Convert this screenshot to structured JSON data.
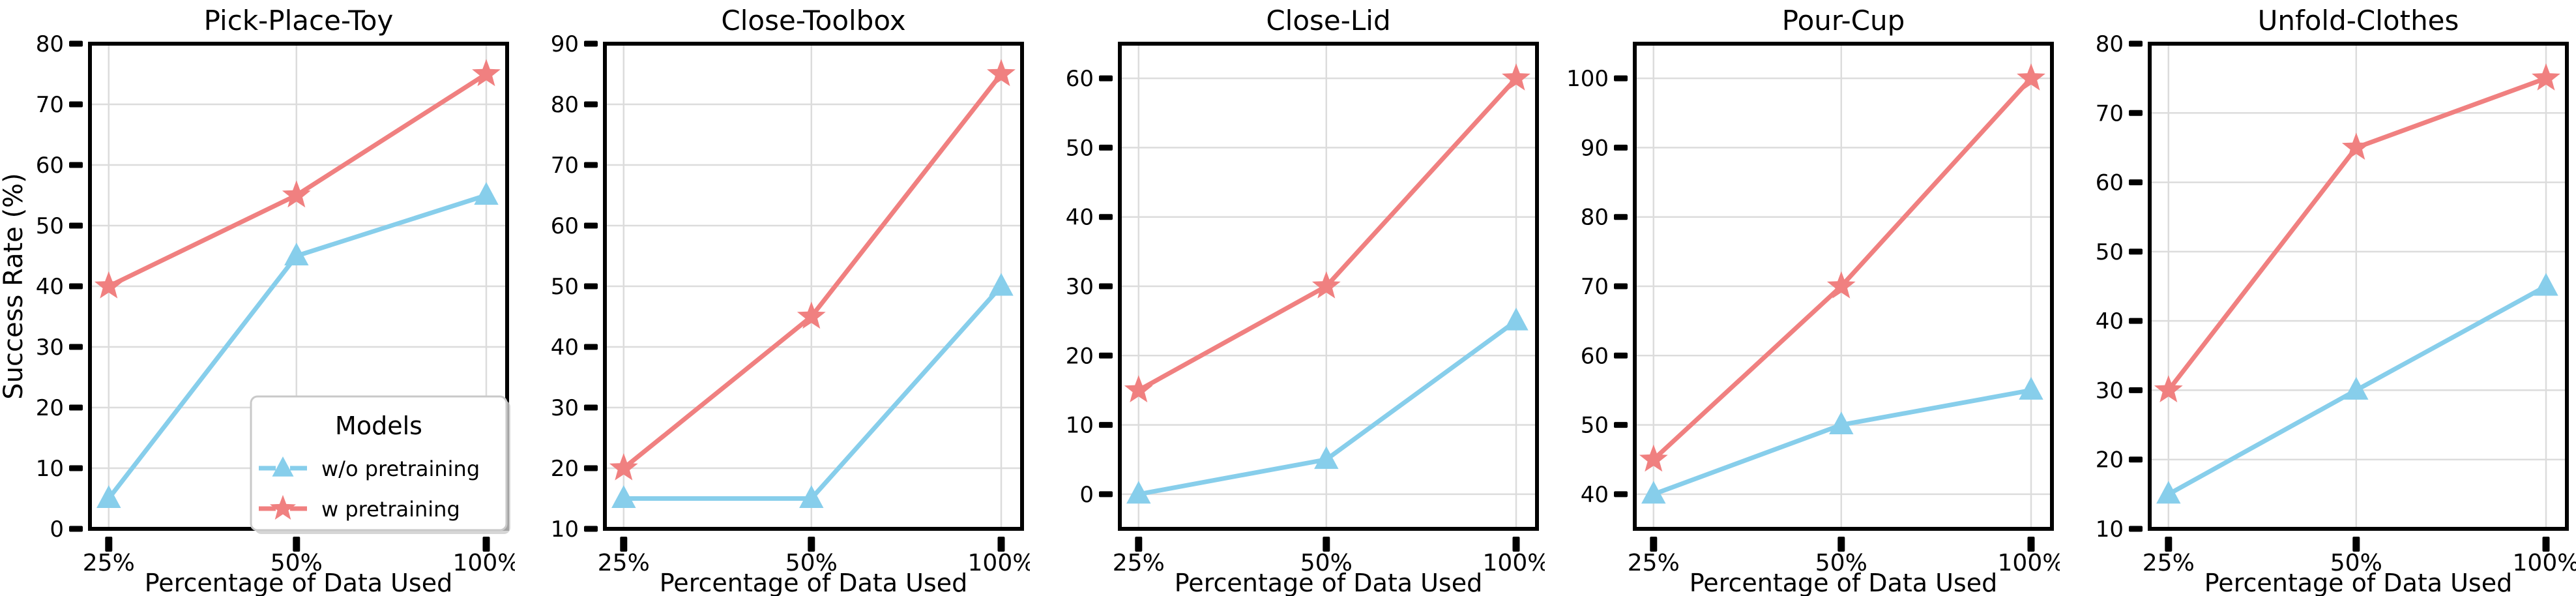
{
  "figure": {
    "xlabel": "Percentage of Data Used",
    "ylabel": "Success Rate (%)",
    "categories": [
      "25%",
      "50%",
      "100%"
    ],
    "colors": {
      "wo_pretraining": "#87CEEB",
      "w_pretraining": "#F08080",
      "grid": "#DCDCDC",
      "spine": "#000000",
      "text": "#000000",
      "legend_border": "#C9C9C9",
      "legend_shadow": "#CCCCCC",
      "background": "#FFFFFF"
    },
    "legend": {
      "title": "Models",
      "entries": [
        {
          "label": "w/o pretraining",
          "marker": "triangle",
          "color": "#87CEEB"
        },
        {
          "label": "w pretraining",
          "marker": "star",
          "color": "#F08080"
        }
      ]
    }
  },
  "chart_data": [
    {
      "type": "line",
      "title": "Pick-Place-Toy",
      "xlabel": "Percentage of Data Used",
      "ylabel": "Success Rate (%)",
      "categories": [
        "25%",
        "50%",
        "100%"
      ],
      "ylim": [
        0,
        80
      ],
      "yticks": [
        0,
        10,
        20,
        30,
        40,
        50,
        60,
        70,
        80
      ],
      "grid": true,
      "show_ylabel": true,
      "show_legend": true,
      "legend_position": "lower right",
      "series": [
        {
          "name": "w/o pretraining",
          "marker": "triangle",
          "color": "#87CEEB",
          "values": [
            5,
            45,
            55
          ]
        },
        {
          "name": "w pretraining",
          "marker": "star",
          "color": "#F08080",
          "values": [
            40,
            55,
            75
          ]
        }
      ]
    },
    {
      "type": "line",
      "title": "Close-Toolbox",
      "xlabel": "Percentage of Data Used",
      "categories": [
        "25%",
        "50%",
        "100%"
      ],
      "ylim": [
        10,
        90
      ],
      "yticks": [
        10,
        20,
        30,
        40,
        50,
        60,
        70,
        80,
        90
      ],
      "grid": true,
      "show_ylabel": false,
      "show_legend": false,
      "series": [
        {
          "name": "w/o pretraining",
          "marker": "triangle",
          "color": "#87CEEB",
          "values": [
            15,
            15,
            50
          ]
        },
        {
          "name": "w pretraining",
          "marker": "star",
          "color": "#F08080",
          "values": [
            20,
            45,
            85
          ]
        }
      ]
    },
    {
      "type": "line",
      "title": "Close-Lid",
      "xlabel": "Percentage of Data Used",
      "categories": [
        "25%",
        "50%",
        "100%"
      ],
      "ylim": [
        -5,
        65
      ],
      "yticks": [
        0,
        10,
        20,
        30,
        40,
        50,
        60
      ],
      "grid": true,
      "show_ylabel": false,
      "show_legend": false,
      "series": [
        {
          "name": "w/o pretraining",
          "marker": "triangle",
          "color": "#87CEEB",
          "values": [
            0,
            5,
            25
          ]
        },
        {
          "name": "w pretraining",
          "marker": "star",
          "color": "#F08080",
          "values": [
            15,
            30,
            60
          ]
        }
      ]
    },
    {
      "type": "line",
      "title": "Pour-Cup",
      "xlabel": "Percentage of Data Used",
      "categories": [
        "25%",
        "50%",
        "100%"
      ],
      "ylim": [
        35,
        105
      ],
      "yticks": [
        40,
        50,
        60,
        70,
        80,
        90,
        100
      ],
      "grid": true,
      "show_ylabel": false,
      "show_legend": false,
      "series": [
        {
          "name": "w/o pretraining",
          "marker": "triangle",
          "color": "#87CEEB",
          "values": [
            40,
            50,
            55
          ]
        },
        {
          "name": "w pretraining",
          "marker": "star",
          "color": "#F08080",
          "values": [
            45,
            70,
            100
          ]
        }
      ]
    },
    {
      "type": "line",
      "title": "Unfold-Clothes",
      "xlabel": "Percentage of Data Used",
      "categories": [
        "25%",
        "50%",
        "100%"
      ],
      "ylim": [
        10,
        80
      ],
      "yticks": [
        10,
        20,
        30,
        40,
        50,
        60,
        70,
        80
      ],
      "grid": true,
      "show_ylabel": false,
      "show_legend": false,
      "series": [
        {
          "name": "w/o pretraining",
          "marker": "triangle",
          "color": "#87CEEB",
          "values": [
            15,
            30,
            45
          ]
        },
        {
          "name": "w pretraining",
          "marker": "star",
          "color": "#F08080",
          "values": [
            30,
            65,
            75
          ]
        }
      ]
    }
  ]
}
